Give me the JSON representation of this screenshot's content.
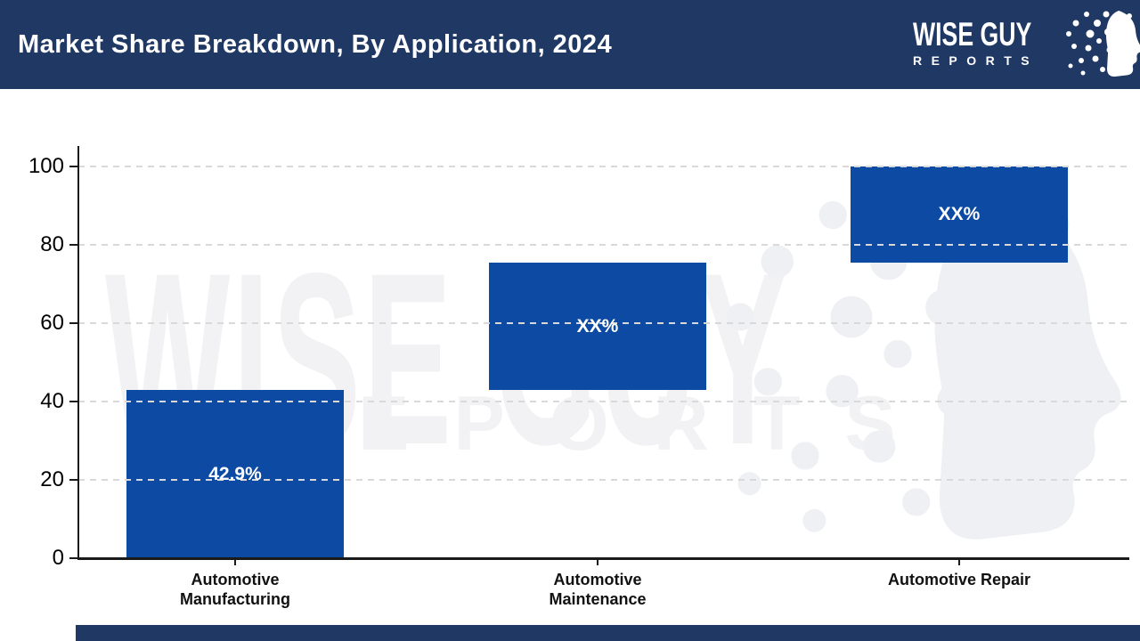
{
  "header": {
    "title": "Market Share Breakdown, By Application, 2024",
    "logo": {
      "name": "wise-guy-reports-logo",
      "line1": "WISE GUY",
      "line2": "REPORTS"
    }
  },
  "watermark": {
    "line1": "WISE GUY",
    "line2": "REPORTS"
  },
  "chart_data": {
    "type": "bar",
    "subtype": "floating-segment",
    "title": "Market Share Breakdown, By Application, 2024",
    "categories": [
      "Automotive Manufacturing",
      "Automotive Maintenance",
      "Automotive Repair"
    ],
    "category_lines": [
      [
        "Automotive",
        "Manufacturing"
      ],
      [
        "Automotive",
        "Maintenance"
      ],
      [
        "Automotive Repair"
      ]
    ],
    "segments": [
      {
        "category": "Automotive Manufacturing",
        "from": 0,
        "to": 42.9,
        "label": "42.9%"
      },
      {
        "category": "Automotive Maintenance",
        "from": 42.9,
        "to": 75.4,
        "label": "XX%"
      },
      {
        "category": "Automotive Repair",
        "from": 75.4,
        "to": 100,
        "label": "XX%"
      }
    ],
    "ylim": [
      0,
      100
    ],
    "yticks": [
      0,
      20,
      40,
      60,
      80,
      100
    ],
    "xlabel": "",
    "ylabel": "",
    "grid": {
      "horizontal": true,
      "style": "dashed",
      "over_bars": true
    },
    "legend": null
  },
  "colors": {
    "header_bg": "#1f3864",
    "footer_bg": "#1f3864",
    "bar": "#0c4aa3",
    "bar_label_text": "#ffffff",
    "axis": "#1a1a1a",
    "gridline": "#d9d9d9",
    "watermark": "#f2f2f4",
    "page_bg": "#ffffff",
    "title_text": "#ffffff",
    "tick_text": "#000000"
  }
}
